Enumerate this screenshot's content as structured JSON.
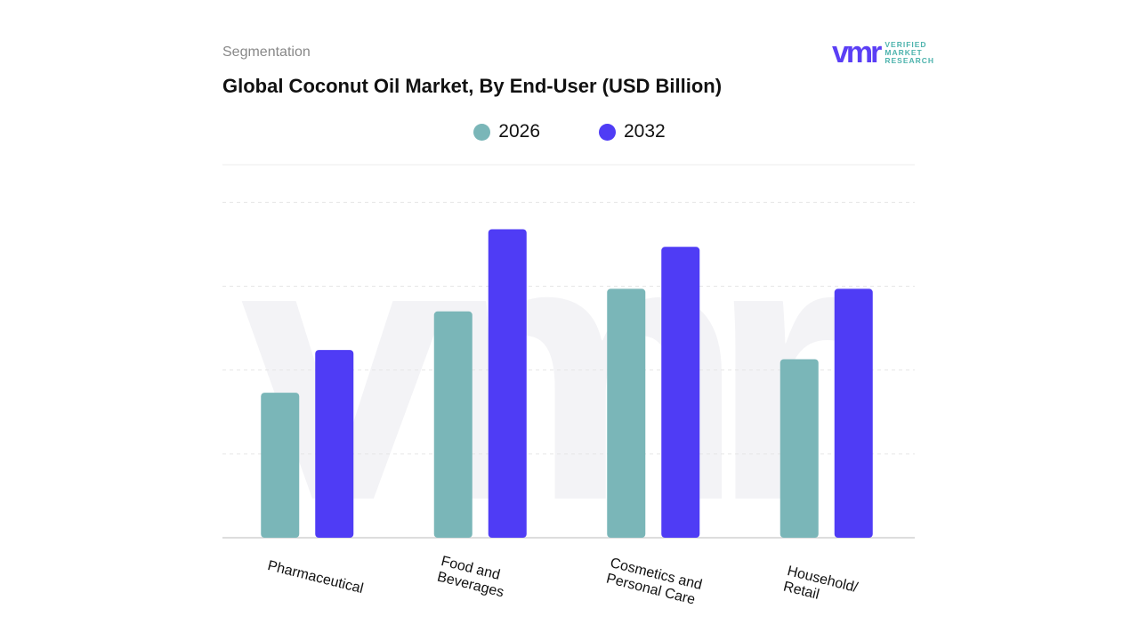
{
  "header": {
    "segment_label": "Segmentation",
    "title": "Global Coconut Oil Market, By End-User (USD Billion)"
  },
  "logo": {
    "mark": "vmr",
    "lines": [
      "VERIFIED",
      "MARKET",
      "RESEARCH"
    ]
  },
  "chart_data": {
    "type": "bar",
    "title": "Global Coconut Oil Market, By End-User (USD Billion)",
    "categories": [
      "Pharmaceutical",
      "Food and Beverages",
      "Cosmetics and Personal Care",
      "Household/ Retail"
    ],
    "series": [
      {
        "name": "2026",
        "color": "#7ab6b8",
        "values": [
          1.73,
          2.7,
          2.97,
          2.13
        ]
      },
      {
        "name": "2032",
        "color": "#4f3cf5",
        "values": [
          2.24,
          3.68,
          3.47,
          2.97
        ]
      }
    ],
    "ylim": [
      0,
      4.45
    ],
    "grid": true,
    "legend": "top-center",
    "xlabel": "",
    "ylabel": ""
  }
}
